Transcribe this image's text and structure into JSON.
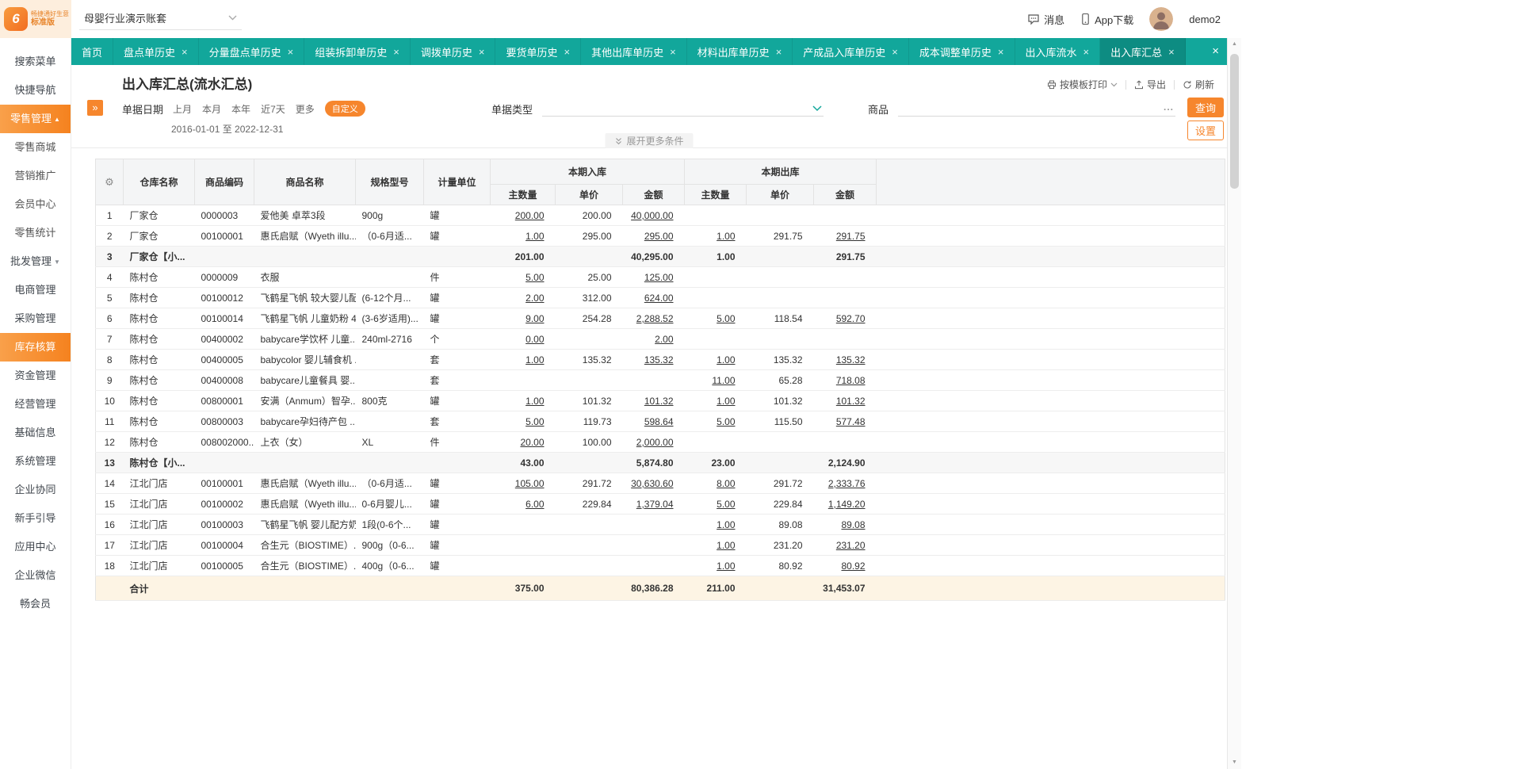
{
  "colors": {
    "teal": "#12a79b",
    "teal_dark": "#0d8c82",
    "orange": "#f6862d",
    "logo_bg": "#fdeedd",
    "total_bg": "#fdf4e4"
  },
  "icons": {
    "logo": "6",
    "gear": "⚙",
    "close": "×",
    "collapse": "»",
    "ellipsis": "...",
    "arrow_up": "▲",
    "arrow_down": "▼"
  },
  "topbar": {
    "brand": "畅捷通好生意",
    "edition": "标准版",
    "account": "母婴行业演示账套",
    "messages": "消息",
    "app_download": "App下载",
    "username": "demo2"
  },
  "sidebar": {
    "items": [
      {
        "label": "搜索菜单",
        "style": "item"
      },
      {
        "label": "快捷导航",
        "style": "item"
      },
      {
        "label": "零售管理",
        "style": "active-parent",
        "arrow": "up"
      },
      {
        "label": "零售商城",
        "style": "sub"
      },
      {
        "label": "营销推广",
        "style": "sub"
      },
      {
        "label": "会员中心",
        "style": "sub"
      },
      {
        "label": "零售统计",
        "style": "sub"
      },
      {
        "label": "批发管理",
        "style": "item",
        "arrow": "down"
      },
      {
        "label": "电商管理",
        "style": "item"
      },
      {
        "label": "采购管理",
        "style": "item"
      },
      {
        "label": "库存核算",
        "style": "active"
      },
      {
        "label": "资金管理",
        "style": "item"
      },
      {
        "label": "经营管理",
        "style": "item"
      },
      {
        "label": "基础信息",
        "style": "item"
      },
      {
        "label": "系统管理",
        "style": "item"
      },
      {
        "label": "企业协同",
        "style": "item"
      },
      {
        "label": "新手引导",
        "style": "item"
      },
      {
        "label": "应用中心",
        "style": "item"
      },
      {
        "label": "企业微信",
        "style": "item"
      },
      {
        "label": "畅会员",
        "style": "item"
      }
    ]
  },
  "tabs": [
    {
      "label": "首页",
      "closable": false,
      "active": false
    },
    {
      "label": "盘点单历史",
      "closable": true,
      "active": false
    },
    {
      "label": "分量盘点单历史",
      "closable": true,
      "active": false
    },
    {
      "label": "组装拆卸单历史",
      "closable": true,
      "active": false
    },
    {
      "label": "调拨单历史",
      "closable": true,
      "active": false
    },
    {
      "label": "要货单历史",
      "closable": true,
      "active": false
    },
    {
      "label": "其他出库单历史",
      "closable": true,
      "active": false
    },
    {
      "label": "材料出库单历史",
      "closable": true,
      "active": false
    },
    {
      "label": "产成品入库单历史",
      "closable": true,
      "active": false
    },
    {
      "label": "成本调整单历史",
      "closable": true,
      "active": false
    },
    {
      "label": "出入库流水",
      "closable": true,
      "active": false
    },
    {
      "label": "出入库汇总",
      "closable": true,
      "active": true
    }
  ],
  "page": {
    "title": "出入库汇总(流水汇总)"
  },
  "toolbar": {
    "print": "按模板打印",
    "export": "导出",
    "refresh": "刷新"
  },
  "filters": {
    "date_label": "单据日期",
    "quick_links": [
      "上月",
      "本月",
      "本年",
      "近7天",
      "更多"
    ],
    "custom_badge": "自定义",
    "date_range": "2016-01-01 至 2022-12-31",
    "type_label": "单据类型",
    "product_label": "商品",
    "search_button": "查询",
    "settings_button": "设置",
    "expand_more": "展开更多条件"
  },
  "table": {
    "headers": {
      "warehouse": "仓库名称",
      "code": "商品编码",
      "name": "商品名称",
      "spec": "规格型号",
      "unit": "计量单位",
      "group_in": "本期入库",
      "group_out": "本期出库",
      "qty": "主数量",
      "price": "单价",
      "amount": "金额"
    },
    "rows": [
      {
        "type": "data",
        "n": "1",
        "warehouse": "厂家仓",
        "code": "0000003",
        "name": "爱他美 卓萃3段",
        "spec": "900g",
        "unit": "罐",
        "in_qty": "200.00",
        "in_price": "200.00",
        "in_amt": "40,000.00",
        "out_qty": "",
        "out_price": "",
        "out_amt": ""
      },
      {
        "type": "data",
        "n": "2",
        "warehouse": "厂家仓",
        "code": "00100001",
        "name": "惠氏启赋（Wyeth illu...",
        "spec": "（0-6月适...",
        "unit": "罐",
        "in_qty": "1.00",
        "in_price": "295.00",
        "in_amt": "295.00",
        "out_qty": "1.00",
        "out_price": "291.75",
        "out_amt": "291.75"
      },
      {
        "type": "subtotal",
        "n": "3",
        "warehouse": "厂家仓【小...",
        "code": "",
        "name": "",
        "spec": "",
        "unit": "",
        "in_qty": "201.00",
        "in_price": "",
        "in_amt": "40,295.00",
        "out_qty": "1.00",
        "out_price": "",
        "out_amt": "291.75"
      },
      {
        "type": "data",
        "n": "4",
        "warehouse": "陈村仓",
        "code": "0000009",
        "name": "衣服",
        "spec": "",
        "unit": "件",
        "in_qty": "5.00",
        "in_price": "25.00",
        "in_amt": "125.00",
        "out_qty": "",
        "out_price": "",
        "out_amt": ""
      },
      {
        "type": "data",
        "n": "5",
        "warehouse": "陈村仓",
        "code": "00100012",
        "name": "飞鹤星飞帆 较大婴儿配...",
        "spec": "(6-12个月...",
        "unit": "罐",
        "in_qty": "2.00",
        "in_price": "312.00",
        "in_amt": "624.00",
        "out_qty": "",
        "out_price": "",
        "out_amt": ""
      },
      {
        "type": "data",
        "n": "6",
        "warehouse": "陈村仓",
        "code": "00100014",
        "name": "飞鹤星飞帆 儿童奶粉 4...",
        "spec": "(3-6岁适用)...",
        "unit": "罐",
        "in_qty": "9.00",
        "in_price": "254.28",
        "in_amt": "2,288.52",
        "out_qty": "5.00",
        "out_price": "118.54",
        "out_amt": "592.70"
      },
      {
        "type": "data",
        "n": "7",
        "warehouse": "陈村仓",
        "code": "00400002",
        "name": "babycare学饮杯 儿童...",
        "spec": "240ml-2716",
        "unit": "个",
        "in_qty": "0.00",
        "in_price": "",
        "in_amt": "2.00",
        "out_qty": "",
        "out_price": "",
        "out_amt": ""
      },
      {
        "type": "data",
        "n": "8",
        "warehouse": "陈村仓",
        "code": "00400005",
        "name": "babycolor 婴儿辅食机 ...",
        "spec": "",
        "unit": "套",
        "in_qty": "1.00",
        "in_price": "135.32",
        "in_amt": "135.32",
        "out_qty": "1.00",
        "out_price": "135.32",
        "out_amt": "135.32"
      },
      {
        "type": "data",
        "n": "9",
        "warehouse": "陈村仓",
        "code": "00400008",
        "name": "babycare儿童餐具 婴...",
        "spec": "",
        "unit": "套",
        "in_qty": "",
        "in_price": "",
        "in_amt": "",
        "out_qty": "11.00",
        "out_price": "65.28",
        "out_amt": "718.08"
      },
      {
        "type": "data",
        "n": "10",
        "warehouse": "陈村仓",
        "code": "00800001",
        "name": "安满（Anmum）智孕...",
        "spec": "800克",
        "unit": "罐",
        "in_qty": "1.00",
        "in_price": "101.32",
        "in_amt": "101.32",
        "out_qty": "1.00",
        "out_price": "101.32",
        "out_amt": "101.32"
      },
      {
        "type": "data",
        "n": "11",
        "warehouse": "陈村仓",
        "code": "00800003",
        "name": "babycare孕妇待产包 ...",
        "spec": "",
        "unit": "套",
        "in_qty": "5.00",
        "in_price": "119.73",
        "in_amt": "598.64",
        "out_qty": "5.00",
        "out_price": "115.50",
        "out_amt": "577.48"
      },
      {
        "type": "data",
        "n": "12",
        "warehouse": "陈村仓",
        "code": "008002000...",
        "name": "上衣（女）",
        "spec": "XL",
        "unit": "件",
        "in_qty": "20.00",
        "in_price": "100.00",
        "in_amt": "2,000.00",
        "out_qty": "",
        "out_price": "",
        "out_amt": ""
      },
      {
        "type": "subtotal",
        "n": "13",
        "warehouse": "陈村仓【小...",
        "code": "",
        "name": "",
        "spec": "",
        "unit": "",
        "in_qty": "43.00",
        "in_price": "",
        "in_amt": "5,874.80",
        "out_qty": "23.00",
        "out_price": "",
        "out_amt": "2,124.90"
      },
      {
        "type": "data",
        "n": "14",
        "warehouse": "江北门店",
        "code": "00100001",
        "name": "惠氏启赋（Wyeth illu...",
        "spec": "（0-6月适...",
        "unit": "罐",
        "in_qty": "105.00",
        "in_price": "291.72",
        "in_amt": "30,630.60",
        "out_qty": "8.00",
        "out_price": "291.72",
        "out_amt": "2,333.76"
      },
      {
        "type": "data",
        "n": "15",
        "warehouse": "江北门店",
        "code": "00100002",
        "name": "惠氏启赋（Wyeth illu...",
        "spec": "0-6月婴儿...",
        "unit": "罐",
        "in_qty": "6.00",
        "in_price": "229.84",
        "in_amt": "1,379.04",
        "out_qty": "5.00",
        "out_price": "229.84",
        "out_amt": "1,149.20"
      },
      {
        "type": "data",
        "n": "16",
        "warehouse": "江北门店",
        "code": "00100003",
        "name": "飞鹤星飞帆 婴儿配方奶...",
        "spec": "1段(0-6个...",
        "unit": "罐",
        "in_qty": "",
        "in_price": "",
        "in_amt": "",
        "out_qty": "1.00",
        "out_price": "89.08",
        "out_amt": "89.08"
      },
      {
        "type": "data",
        "n": "17",
        "warehouse": "江北门店",
        "code": "00100004",
        "name": "合生元（BIOSTIME）...",
        "spec": "900g（0-6...",
        "unit": "罐",
        "in_qty": "",
        "in_price": "",
        "in_amt": "",
        "out_qty": "1.00",
        "out_price": "231.20",
        "out_amt": "231.20"
      },
      {
        "type": "data",
        "n": "18",
        "warehouse": "江北门店",
        "code": "00100005",
        "name": "合生元（BIOSTIME）...",
        "spec": "400g（0-6...",
        "unit": "罐",
        "in_qty": "",
        "in_price": "",
        "in_amt": "",
        "out_qty": "1.00",
        "out_price": "80.92",
        "out_amt": "80.92"
      },
      {
        "type": "total",
        "n": "",
        "warehouse": "合计",
        "code": "",
        "name": "",
        "spec": "",
        "unit": "",
        "in_qty": "375.00",
        "in_price": "",
        "in_amt": "80,386.28",
        "out_qty": "211.00",
        "out_price": "",
        "out_amt": "31,453.07"
      }
    ]
  }
}
